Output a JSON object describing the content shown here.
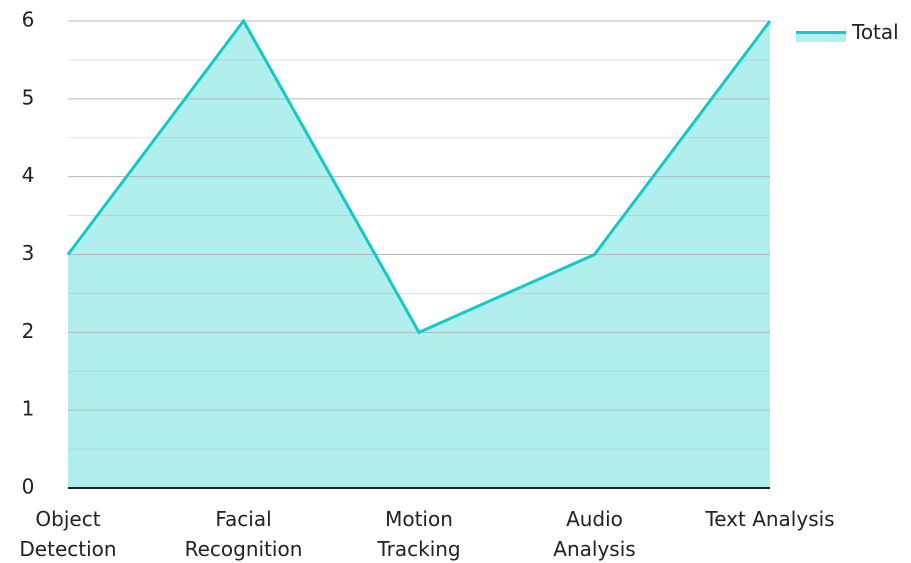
{
  "chart_data": {
    "type": "area",
    "categories": [
      [
        "Object",
        "Detection"
      ],
      [
        "Facial",
        "Recognition"
      ],
      [
        "Motion",
        "Tracking"
      ],
      [
        "Audio",
        "Analysis"
      ],
      [
        "Text Analysis"
      ]
    ],
    "series": [
      {
        "name": "Total",
        "values": [
          3,
          6,
          2,
          3,
          6
        ]
      }
    ],
    "ylim": [
      0,
      6
    ],
    "yticks": [
      0,
      1,
      2,
      3,
      4,
      5,
      6
    ],
    "grid": true,
    "legend": "top-right",
    "colors": {
      "line": "#13c9c7",
      "fill": "#b1efee",
      "grid": "#b0b0b0",
      "axis": "#222222"
    }
  }
}
